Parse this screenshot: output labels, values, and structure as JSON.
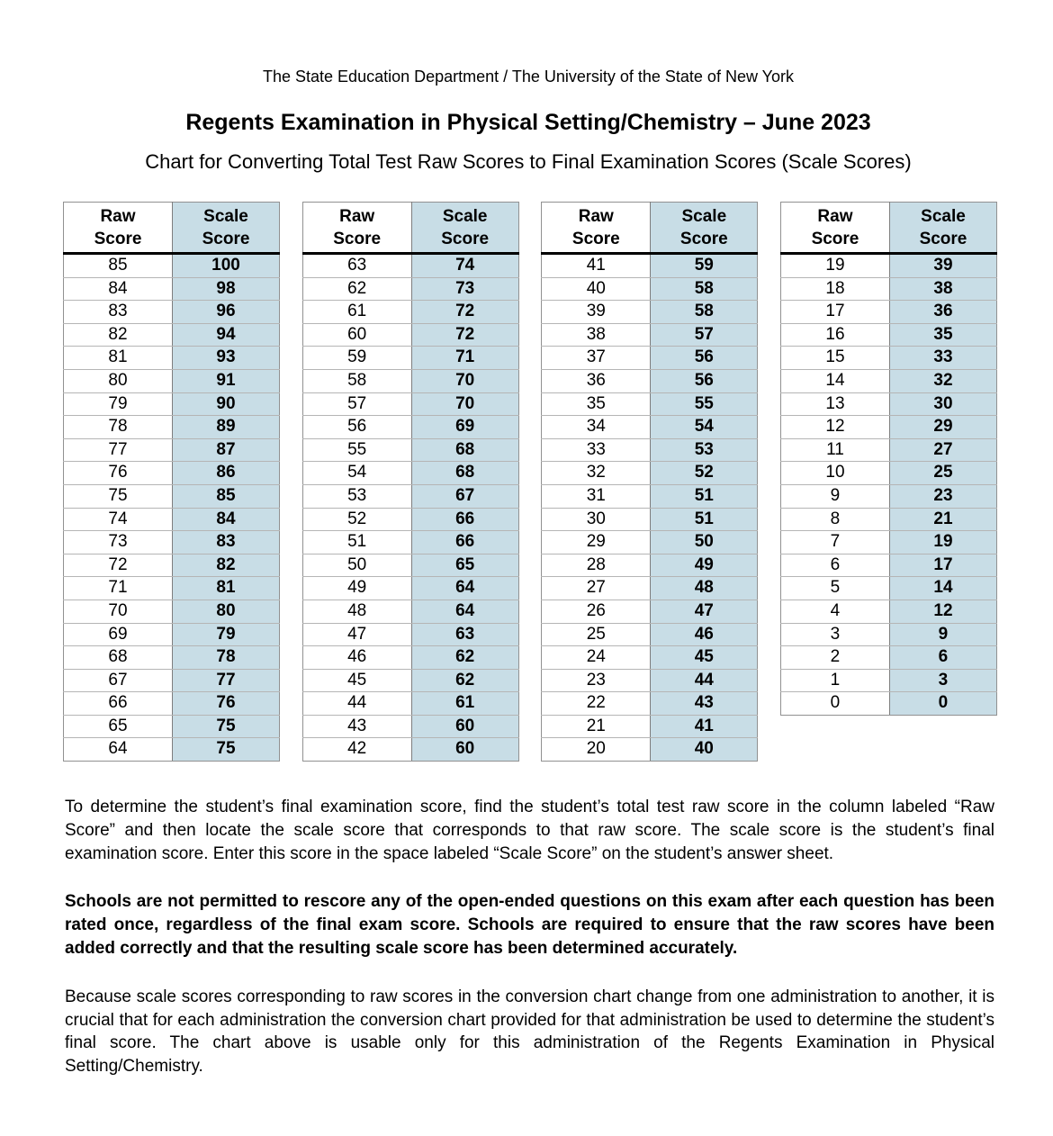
{
  "page": {
    "department_line": "The State Education Department / The University of the State of New York",
    "title": "Regents Examination in Physical Setting/Chemistry – June 2023",
    "subtitle": "Chart for Converting Total Test Raw Scores to Final Examination Scores (Scale Scores)"
  },
  "table_columns": {
    "raw": [
      "Raw",
      "Score"
    ],
    "scale": [
      "Scale",
      "Score"
    ]
  },
  "colors": {
    "scale_column_bg": "#c8dde6",
    "header_rule": "#000000",
    "row_border": "#b5b5b5"
  },
  "conversion_tables": [
    {
      "rows": [
        [
          85,
          100
        ],
        [
          84,
          98
        ],
        [
          83,
          96
        ],
        [
          82,
          94
        ],
        [
          81,
          93
        ],
        [
          80,
          91
        ],
        [
          79,
          90
        ],
        [
          78,
          89
        ],
        [
          77,
          87
        ],
        [
          76,
          86
        ],
        [
          75,
          85
        ],
        [
          74,
          84
        ],
        [
          73,
          83
        ],
        [
          72,
          82
        ],
        [
          71,
          81
        ],
        [
          70,
          80
        ],
        [
          69,
          79
        ],
        [
          68,
          78
        ],
        [
          67,
          77
        ],
        [
          66,
          76
        ],
        [
          65,
          75
        ],
        [
          64,
          75
        ]
      ]
    },
    {
      "rows": [
        [
          63,
          74
        ],
        [
          62,
          73
        ],
        [
          61,
          72
        ],
        [
          60,
          72
        ],
        [
          59,
          71
        ],
        [
          58,
          70
        ],
        [
          57,
          70
        ],
        [
          56,
          69
        ],
        [
          55,
          68
        ],
        [
          54,
          68
        ],
        [
          53,
          67
        ],
        [
          52,
          66
        ],
        [
          51,
          66
        ],
        [
          50,
          65
        ],
        [
          49,
          64
        ],
        [
          48,
          64
        ],
        [
          47,
          63
        ],
        [
          46,
          62
        ],
        [
          45,
          62
        ],
        [
          44,
          61
        ],
        [
          43,
          60
        ],
        [
          42,
          60
        ]
      ]
    },
    {
      "rows": [
        [
          41,
          59
        ],
        [
          40,
          58
        ],
        [
          39,
          58
        ],
        [
          38,
          57
        ],
        [
          37,
          56
        ],
        [
          36,
          56
        ],
        [
          35,
          55
        ],
        [
          34,
          54
        ],
        [
          33,
          53
        ],
        [
          32,
          52
        ],
        [
          31,
          51
        ],
        [
          30,
          51
        ],
        [
          29,
          50
        ],
        [
          28,
          49
        ],
        [
          27,
          48
        ],
        [
          26,
          47
        ],
        [
          25,
          46
        ],
        [
          24,
          45
        ],
        [
          23,
          44
        ],
        [
          22,
          43
        ],
        [
          21,
          41
        ],
        [
          20,
          40
        ]
      ]
    },
    {
      "rows": [
        [
          19,
          39
        ],
        [
          18,
          38
        ],
        [
          17,
          36
        ],
        [
          16,
          35
        ],
        [
          15,
          33
        ],
        [
          14,
          32
        ],
        [
          13,
          30
        ],
        [
          12,
          29
        ],
        [
          11,
          27
        ],
        [
          10,
          25
        ],
        [
          9,
          23
        ],
        [
          8,
          21
        ],
        [
          7,
          19
        ],
        [
          6,
          17
        ],
        [
          5,
          14
        ],
        [
          4,
          12
        ],
        [
          3,
          9
        ],
        [
          2,
          6
        ],
        [
          1,
          3
        ],
        [
          0,
          0
        ]
      ]
    }
  ],
  "paragraphs": [
    {
      "style": "normal",
      "text": "To determine the student’s final examination score, find the student’s total test raw score in the column labeled “Raw Score” and then locate the scale score that corresponds to that raw score. The scale score is the student’s final examination score. Enter this score in the space labeled “Scale Score” on the student’s answer sheet."
    },
    {
      "style": "bold",
      "text": "Schools are not permitted to rescore any of the open-ended questions on this exam after each question has been rated once, regardless of the final exam score. Schools are required to ensure that the raw scores have been added correctly and that the resulting scale score has been determined accurately."
    },
    {
      "style": "normal",
      "text": "Because scale scores corresponding to raw scores in the conversion chart change from one administration to another, it is crucial that for each administration the conversion chart provided for that administration be used to determine the student’s final score. The chart above is usable only for this administration of the Regents Examination in Physical Setting/Chemistry."
    }
  ]
}
